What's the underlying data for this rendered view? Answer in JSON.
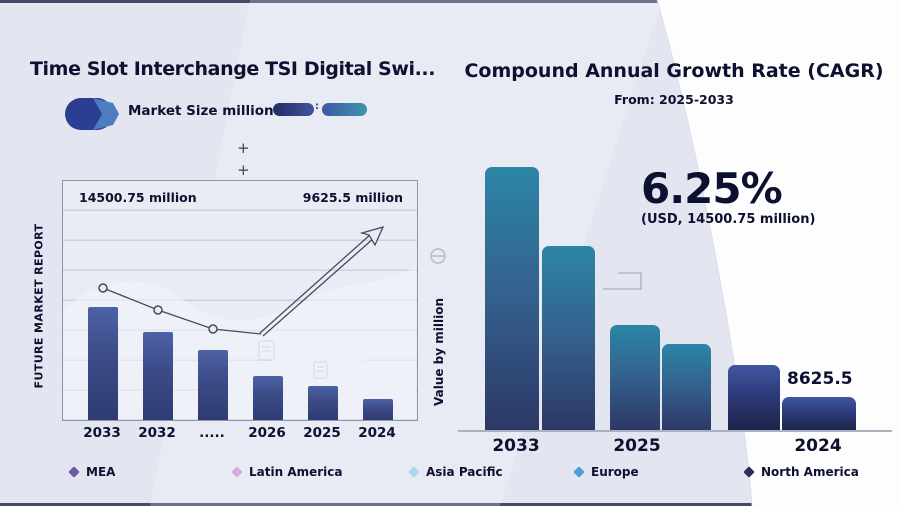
{
  "left_chart": {
    "title": "Time Slot Interchange TSI Digital Swi...",
    "legend_label": "Market Size million",
    "legend_separator": ":",
    "plus_mark": "+",
    "side_label": "FUTURE MARKET REPORT",
    "start_value_label": "14500.75 million",
    "end_value_label": "9625.5 million",
    "categories": [
      "2033",
      "2032",
      ".....",
      "2026",
      "2025",
      "2024"
    ]
  },
  "right_chart": {
    "title": "Compound Annual Growth Rate (CAGR)",
    "subtitle": "From: 2025-2033",
    "cagr_value": "6.25%",
    "cagr_detail": "(USD, 14500.75 million)",
    "axis_label": "Value by million",
    "callout_value": "8625.5",
    "categories": [
      "2033",
      "2025",
      "2024"
    ]
  },
  "region_legend": {
    "items": [
      {
        "label": "MEA",
        "color": "#6e57a5"
      },
      {
        "label": "Latin America",
        "color": "#d7abdb"
      },
      {
        "label": "Asia Pacific",
        "color": "#abd9ec"
      },
      {
        "label": "Europe",
        "color": "#4f9ed8"
      },
      {
        "label": "North America",
        "color": "#272f5f"
      }
    ]
  },
  "colors": {
    "background": "#e3e6f1",
    "white_wedge": "#ffffff",
    "text_dark": "#0c1130",
    "left_bar_top": "#4c62a7",
    "left_bar_bottom": "#2f3c72",
    "teal_bar_top": "#2b86a5",
    "teal_bar_bottom": "#2d3765",
    "navy_bar_top": "#4156a3",
    "navy_bar_bottom": "#1c2447"
  },
  "chart_data": [
    {
      "type": "bar",
      "title": "Time Slot Interchange TSI Digital Swi...",
      "legend": [
        "Market Size million"
      ],
      "legend_position": "above-chart",
      "categories": [
        "2033",
        "2032",
        ".....",
        "2026",
        "2025",
        "2024"
      ],
      "values_relative_pct": [
        100,
        78,
        62,
        39,
        30,
        19
      ],
      "annotations": [
        "14500.75 million",
        "9625.5 million"
      ],
      "overlay": "marker line declining from 2033 to 2026, then double-line arrow rising toward the 9625.5 million label",
      "xlabel": "",
      "ylabel": "",
      "grid": "horizontal"
    },
    {
      "type": "bar",
      "title": "Compound Annual Growth Rate (CAGR)",
      "subtitle": "From: 2025-2033",
      "categories": [
        "2033",
        "2025",
        "2024"
      ],
      "series": [
        {
          "name": "series-1",
          "values_relative_pct": [
            100,
            40,
            25
          ]
        },
        {
          "name": "series-2",
          "values_relative_pct": [
            70,
            33,
            13
          ]
        }
      ],
      "annotations": [
        "6.25%",
        "(USD, 14500.75 million)",
        "8625.5"
      ],
      "xlabel": "",
      "ylabel": "Value by million",
      "grid": "off",
      "legend_entries": [
        "MEA",
        "Latin America",
        "Asia Pacific",
        "Europe",
        "North America"
      ]
    }
  ]
}
